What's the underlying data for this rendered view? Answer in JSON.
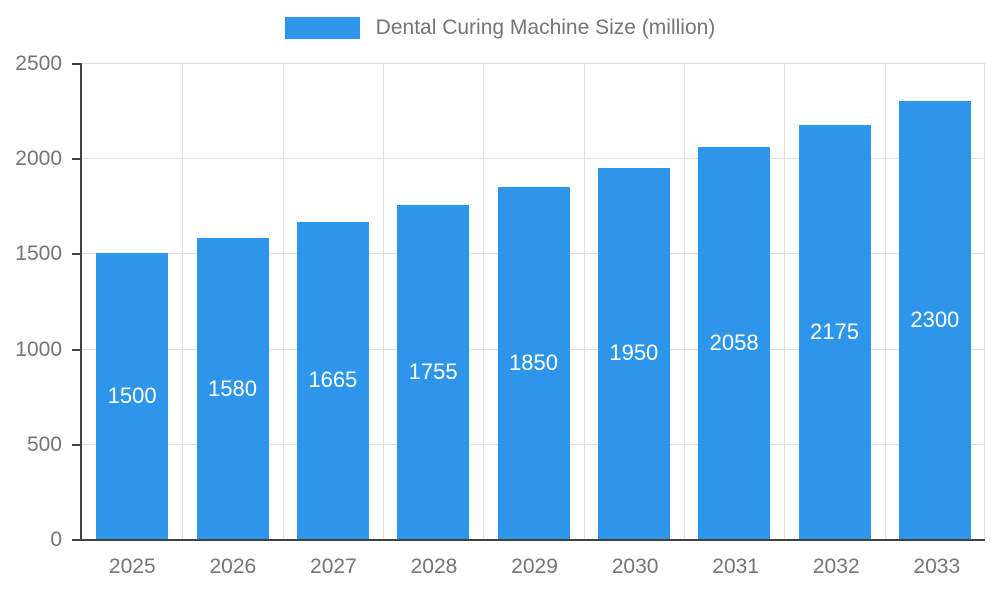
{
  "chart_data": {
    "type": "bar",
    "title": "Dental Curing Machine Size (million)",
    "categories": [
      "2025",
      "2026",
      "2027",
      "2028",
      "2029",
      "2030",
      "2031",
      "2032",
      "2033"
    ],
    "values": [
      1500,
      1580,
      1665,
      1755,
      1850,
      1950,
      2058,
      2175,
      2300
    ],
    "series_name": "Dental Curing Machine Size (million)",
    "xlabel": "",
    "ylabel": "",
    "ylim": [
      0,
      2500
    ],
    "y_ticks": [
      0,
      500,
      1000,
      1500,
      2000,
      2500
    ],
    "grid": true,
    "legend_position": "top",
    "bar_color": "#2E96EA",
    "value_label_color": "#ffffff",
    "axis_text_color": "#757575",
    "grid_color": "#e0e0e0",
    "axis_line_color": "#424242"
  }
}
